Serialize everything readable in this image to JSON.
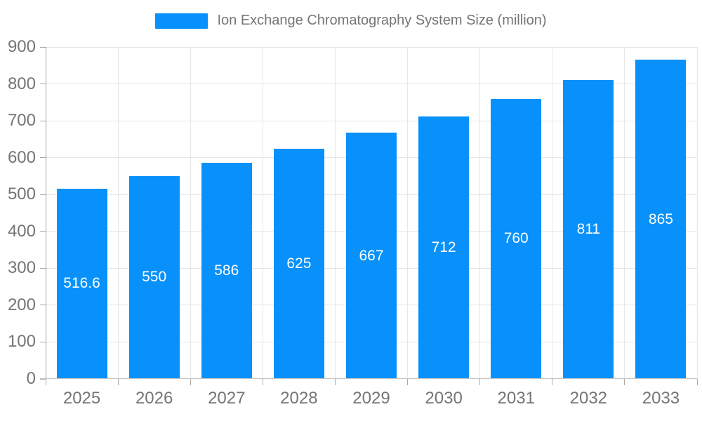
{
  "legend": {
    "label": "Ion Exchange Chromatography System Size (million)",
    "swatch_color": "#0891fa"
  },
  "chart_data": {
    "type": "bar",
    "title": "Ion Exchange Chromatography System Size (million)",
    "categories": [
      "2025",
      "2026",
      "2027",
      "2028",
      "2029",
      "2030",
      "2031",
      "2032",
      "2033"
    ],
    "values": [
      516.6,
      550,
      586,
      625,
      667,
      712,
      760,
      811,
      865
    ],
    "value_labels": [
      "516.6",
      "550",
      "586",
      "625",
      "667",
      "712",
      "760",
      "811",
      "865"
    ],
    "ytick_labels": [
      "0",
      "100",
      "200",
      "300",
      "400",
      "500",
      "600",
      "700",
      "800",
      "900"
    ],
    "xlabel": "",
    "ylabel": "",
    "ylim": [
      0,
      900
    ],
    "ytick_step": 100,
    "grid": true,
    "legend_position": "top",
    "bar_color": "#0891fa",
    "bar_label_color": "#ffffff",
    "axis_label_color": "#757575",
    "gridline_color": "#e6e6e6",
    "axis_line_color": "#a0a0a0"
  }
}
